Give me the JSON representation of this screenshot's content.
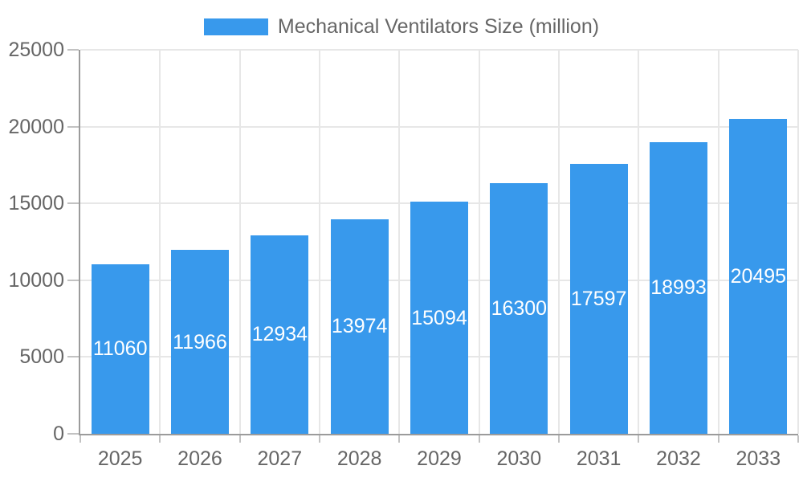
{
  "chart_data": {
    "type": "bar",
    "title": "Mechanical Ventilators Size (million)",
    "legend": {
      "position": "top",
      "label": "Mechanical Ventilators Size (million)"
    },
    "categories": [
      "2025",
      "2026",
      "2027",
      "2028",
      "2029",
      "2030",
      "2031",
      "2032",
      "2033"
    ],
    "series": [
      {
        "name": "Mechanical Ventilators Size (million)",
        "values": [
          11060,
          11966,
          12934,
          13974,
          15094,
          16300,
          17597,
          18993,
          20495
        ]
      }
    ],
    "value_labels_shown": true,
    "xlabel": "",
    "ylabel": "",
    "ylim": [
      0,
      25000
    ],
    "yticks": [
      0,
      5000,
      10000,
      15000,
      20000,
      25000
    ],
    "grid": true
  },
  "colors": {
    "bar": "#3899EC",
    "axis_line": "#9B9B9B",
    "grid_line": "#E7E7E7",
    "tick_mark": "#C2C2C2",
    "tick_text": "#666666",
    "value_label_text": "#FFFFFF",
    "legend_text": "#666666",
    "background": "#FFFFFF"
  }
}
